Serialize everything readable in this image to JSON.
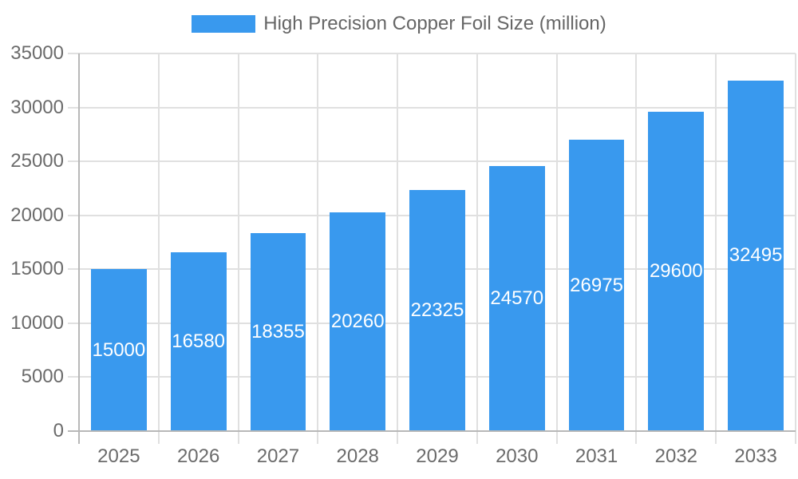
{
  "chart_data": {
    "type": "bar",
    "title": "High Precision Copper Foil Size (million)",
    "legend": [
      "High Precision Copper Foil Size (million)"
    ],
    "legend_position": "top",
    "categories": [
      "2025",
      "2026",
      "2027",
      "2028",
      "2029",
      "2030",
      "2031",
      "2032",
      "2033"
    ],
    "values": [
      15000,
      16580,
      18355,
      20260,
      22325,
      24570,
      26975,
      29600,
      32495
    ],
    "bar_value_labels": [
      "15000",
      "16580",
      "18355",
      "20260",
      "22325",
      "24570",
      "26975",
      "29600",
      "32495"
    ],
    "xlabel": "",
    "ylabel": "",
    "ylim": [
      0,
      35000
    ],
    "ytick_interval": 5000,
    "yticks": [
      0,
      5000,
      10000,
      15000,
      20000,
      25000,
      30000,
      35000
    ],
    "grid": "on",
    "colors": {
      "bar": "#3999EE",
      "bar_label_text": "#FFFFFF",
      "gridline": "#E0E0E0",
      "axis_line": "#B8B8B8",
      "tick_label_text": "#6B6B6B",
      "legend_text": "#666666",
      "background": "#FFFFFF"
    }
  }
}
